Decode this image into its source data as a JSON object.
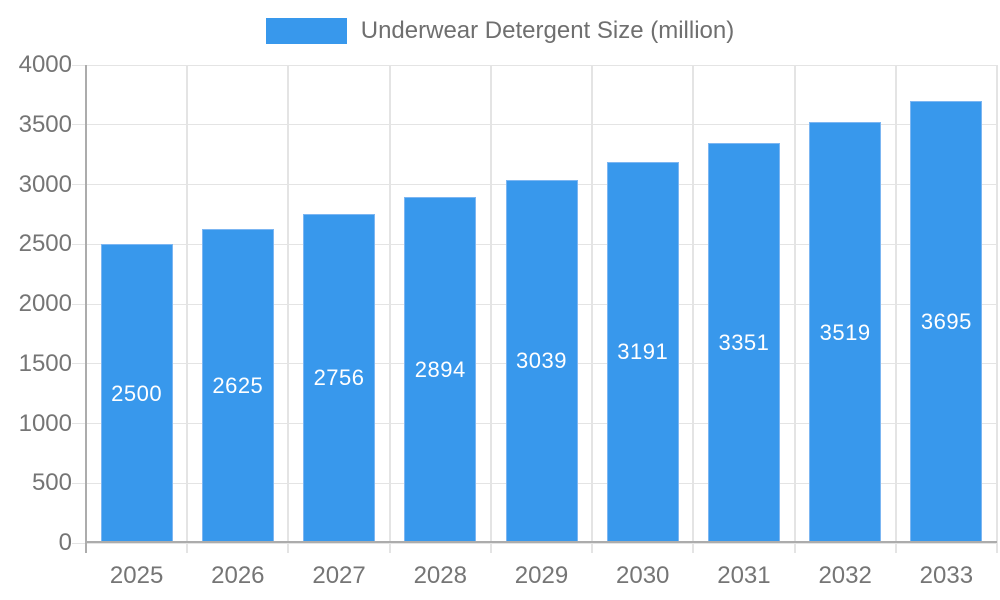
{
  "legend": {
    "series_label": "Underwear Detergent Size (million)"
  },
  "chart_data": {
    "type": "bar",
    "title": "Underwear Detergent Size (million)",
    "categories": [
      "2025",
      "2026",
      "2027",
      "2028",
      "2029",
      "2030",
      "2031",
      "2032",
      "2033"
    ],
    "series": [
      {
        "name": "Underwear Detergent Size (million)",
        "values": [
          2500,
          2625,
          2756,
          2894,
          3039,
          3191,
          3351,
          3519,
          3695
        ]
      }
    ],
    "values": [
      2500,
      2625,
      2756,
      2894,
      3039,
      3191,
      3351,
      3519,
      3695
    ],
    "value_labels_position": "inside-center",
    "xlabel": "",
    "ylabel": "",
    "ylim": [
      0,
      4000
    ],
    "ytick_step": 500,
    "ytick_labels": [
      "0",
      "500",
      "1000",
      "1500",
      "2000",
      "2500",
      "3000",
      "3500",
      "4000"
    ],
    "grid": true,
    "legend_position": "top"
  },
  "colors": {
    "bar_fill": "#3898EC",
    "bar_border": "#7CB6F2",
    "gridline": "#E4E4E4",
    "axis_line": "#ACACAC",
    "tick_text": "#757575",
    "legend_text": "#6F6F6F",
    "value_text": "#FFFFFF",
    "background": "#FFFFFF"
  }
}
